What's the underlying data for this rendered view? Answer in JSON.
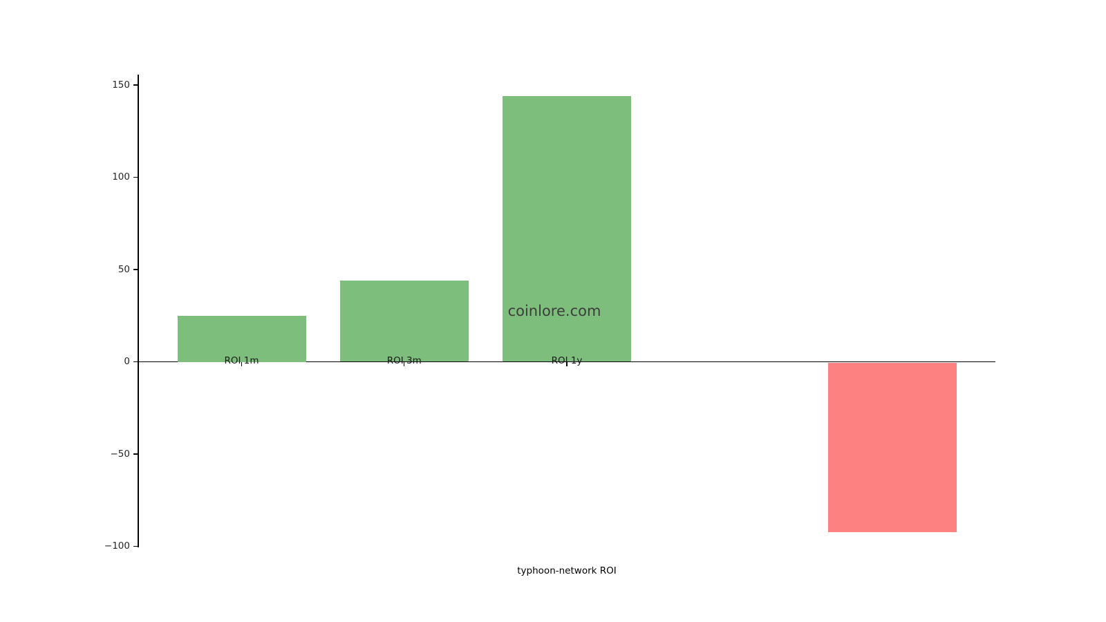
{
  "chart_data": {
    "type": "bar",
    "xlabel": "typhoon-network ROI",
    "watermark": "coinlore.com",
    "categories": [
      "ROI 1m",
      "ROI 3m",
      "ROI 1y",
      ""
    ],
    "values": [
      25,
      44,
      144,
      -92
    ],
    "x_slots": [
      0,
      1,
      2,
      4
    ],
    "show_x_labels": [
      true,
      true,
      true,
      false
    ],
    "y_ticks": [
      150,
      100,
      50,
      0,
      -50,
      -100
    ],
    "ylim": [
      -104,
      157
    ],
    "positive_color": "#7dbe7d",
    "negative_color": "#fe8181",
    "axis_color": "#000000",
    "tick_text_color": "#262626",
    "watermark_color": "#3d3d3d",
    "grid": false,
    "legend_position": "none"
  }
}
